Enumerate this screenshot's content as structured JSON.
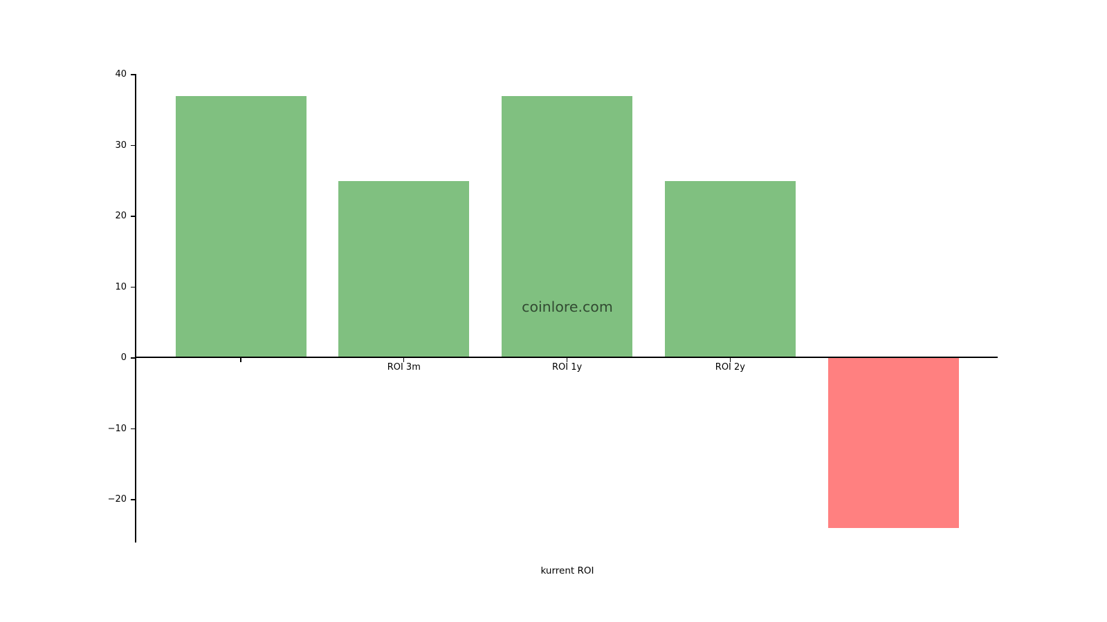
{
  "chart_data": {
    "type": "bar",
    "categories": [
      "",
      "ROI 3m",
      "ROI 1y",
      "ROI 2y",
      ""
    ],
    "values": [
      37,
      25,
      37,
      25,
      -24
    ],
    "xlabel": "kurrent ROI",
    "ylabel": "",
    "yticks": [
      40,
      30,
      20,
      10,
      0,
      -10,
      -20
    ],
    "ytick_labels": [
      "40",
      "30",
      "20",
      "10",
      "0",
      "−10",
      "−20"
    ],
    "ylim": [
      -26.5,
      40
    ],
    "grid": false,
    "legend": false,
    "positive_color": "#80c080",
    "negative_color": "#ff8080",
    "axis_color": "#000000",
    "tick_label_color": "#000000",
    "watermark": "coinlore.com",
    "watermark_color": "rgba(0,0,0,0.62)"
  }
}
